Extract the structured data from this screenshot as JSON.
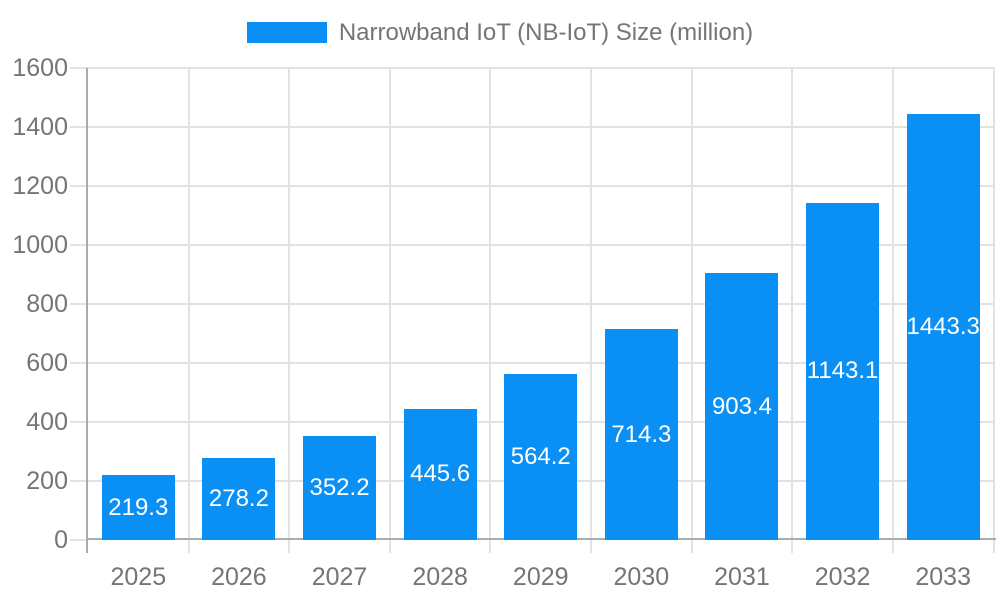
{
  "chart_data": {
    "type": "bar",
    "title": "Narrowband IoT (NB-IoT) Size (million)",
    "legend": [
      "Narrowband IoT (NB-IoT) Size (million)"
    ],
    "legend_position": "top-center",
    "categories": [
      "2025",
      "2026",
      "2027",
      "2028",
      "2029",
      "2030",
      "2031",
      "2032",
      "2033"
    ],
    "series": [
      {
        "name": "Narrowband IoT (NB-IoT) Size (million)",
        "values": [
          219.3,
          278.2,
          352.2,
          445.6,
          564.2,
          714.3,
          903.4,
          1143.1,
          1443.3
        ]
      }
    ],
    "value_labels": [
      "219.3",
      "278.2",
      "352.2",
      "445.6",
      "564.2",
      "714.3",
      "903.4",
      "1143.1",
      "1443.3"
    ],
    "xlabel": "",
    "ylabel": "",
    "ylim": [
      0,
      1600
    ],
    "ytick_step": 200,
    "ytick_labels": [
      "0",
      "200",
      "400",
      "600",
      "800",
      "1000",
      "1200",
      "1400",
      "1600"
    ],
    "grid": "on",
    "colors": {
      "bar": "#0a90f5",
      "value_label": "#ffffff",
      "axis_text": "#757575",
      "axis_line": "#ababab",
      "gridline": "#e2e2e2",
      "background": "#ffffff"
    }
  }
}
